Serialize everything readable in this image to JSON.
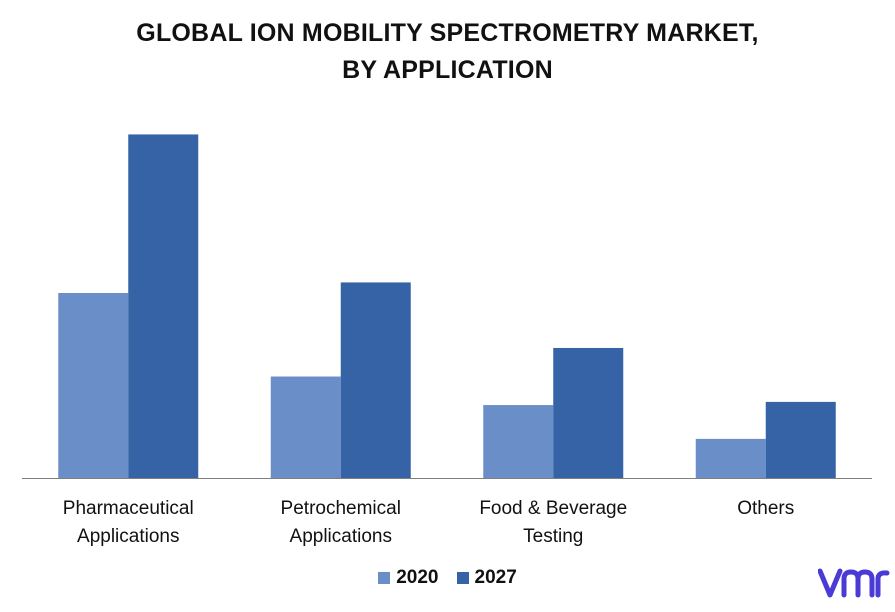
{
  "title": {
    "line1": "GLOBAL ION MOBILITY SPECTROMETRY MARKET,",
    "line2": "BY APPLICATION"
  },
  "colors": {
    "series_2020": "#6a8fc8",
    "series_2027": "#3563a5",
    "axis": "#7f7f7f",
    "logo": "#4a3ad6"
  },
  "chart_data": {
    "type": "bar",
    "categories": [
      [
        "Pharmaceutical",
        "Applications"
      ],
      [
        "Petrochemical",
        "Applications"
      ],
      [
        "Food & Beverage",
        "Testing"
      ],
      [
        "Others"
      ]
    ],
    "series": [
      {
        "name": "2020",
        "values": [
          175,
          96,
          69,
          37
        ]
      },
      {
        "name": "2027",
        "values": [
          325,
          185,
          123,
          72
        ]
      }
    ],
    "ylim": [
      0,
      350
    ],
    "grid": false,
    "legend": "bottom",
    "xlabel": "",
    "ylabel": ""
  },
  "legend": {
    "items": [
      "2020",
      "2027"
    ]
  },
  "logo": {
    "text": "vmr",
    "icon": "vmr-logo"
  }
}
